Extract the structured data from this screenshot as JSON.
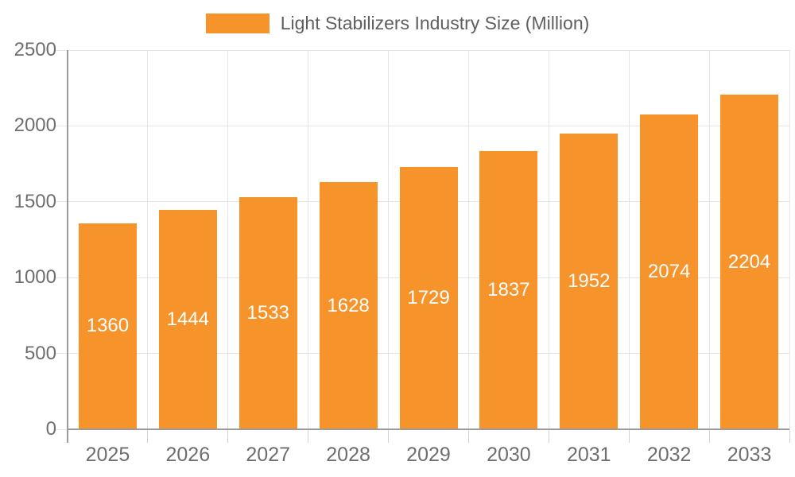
{
  "legend": {
    "label": "Light Stabilizers Industry Size (Million)"
  },
  "chart_data": {
    "type": "bar",
    "title": "Light Stabilizers Industry Size (Million)",
    "series_name": "Light Stabilizers Industry Size (Million)",
    "categories": [
      "2025",
      "2026",
      "2027",
      "2028",
      "2029",
      "2030",
      "2031",
      "2032",
      "2033"
    ],
    "values": [
      1360,
      1444,
      1533,
      1628,
      1729,
      1837,
      1952,
      2074,
      2204
    ],
    "value_labels": [
      "1360",
      "1444",
      "1533",
      "1628",
      "1729",
      "1837",
      "1952",
      "2074",
      "2204"
    ],
    "xlabel": "",
    "ylabel": "",
    "ylim": [
      0,
      2500
    ],
    "yticks": [
      0,
      500,
      1000,
      1500,
      2000,
      2500
    ],
    "ytick_labels": [
      "0",
      "500",
      "1000",
      "1500",
      "2000",
      "2500"
    ],
    "grid": true,
    "legend_position": "top",
    "bar_color": "#f6932a",
    "value_label_color": "#ffffff",
    "axis_label_color": "#6e6e6e",
    "gridline_color": "#e5e5e5",
    "axis_line_color": "#9b9b9b"
  }
}
